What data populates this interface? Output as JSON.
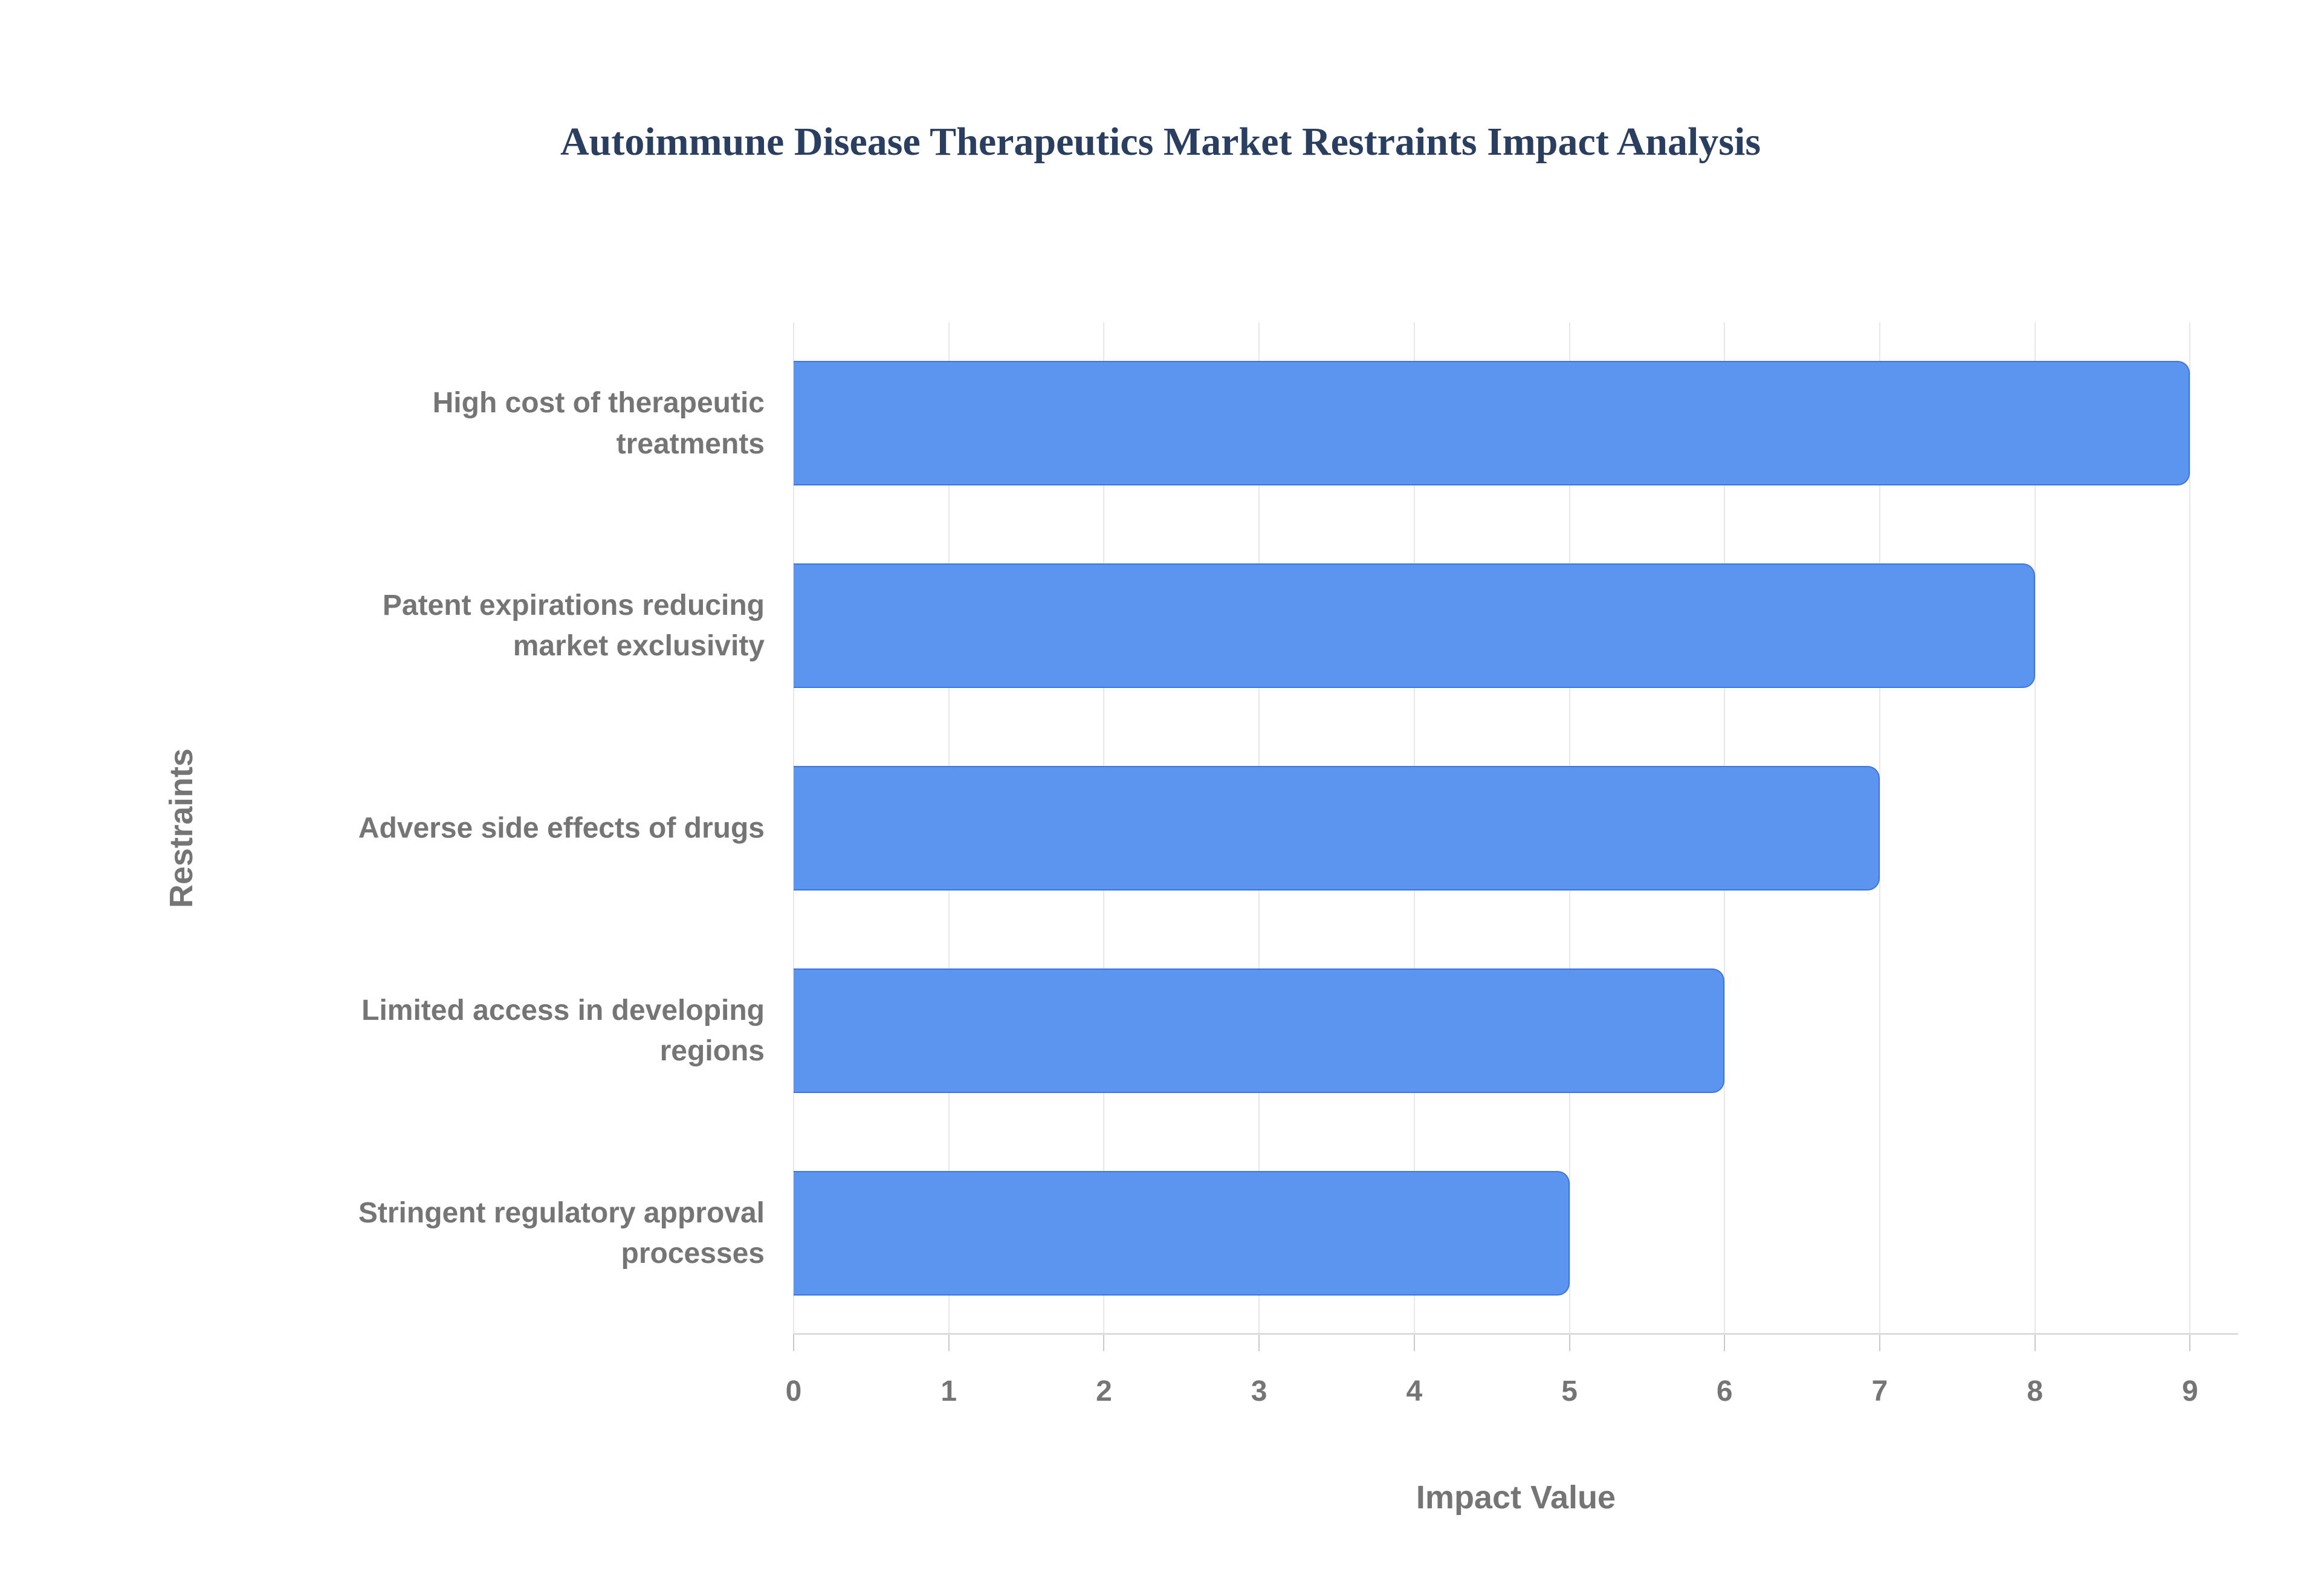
{
  "page": {
    "background": "#ffffff"
  },
  "chart_data": {
    "type": "bar",
    "orientation": "horizontal",
    "title": "Autoimmune Disease Therapeutics Market Restraints Impact Analysis",
    "xlabel": "Impact Value",
    "ylabel": "Restraints",
    "categories": [
      "High cost of therapeutic treatments",
      "Patent expirations reducing market exclusivity",
      "Adverse side effects of drugs",
      "Limited access in developing regions",
      "Stringent regulatory approval processes"
    ],
    "category_lines": [
      [
        "High cost of therapeutic",
        "treatments"
      ],
      [
        "Patent expirations reducing",
        "market exclusivity"
      ],
      [
        "Adverse side effects of drugs"
      ],
      [
        "Limited access in developing",
        "regions"
      ],
      [
        "Stringent regulatory approval",
        "processes"
      ]
    ],
    "values": [
      9,
      8,
      7,
      6,
      5
    ],
    "xticks": [
      0,
      1,
      2,
      3,
      4,
      5,
      6,
      7,
      8,
      9
    ],
    "xlim": [
      0,
      9.31
    ],
    "grid": true,
    "legend": false,
    "colors": {
      "bar_fill": "#5c95ef",
      "bar_border": "#3c75e3",
      "gridline": "#e8e8e8",
      "axis_line": "#dcdcdc",
      "tick": "#c9c9c9",
      "label_text": "#757575",
      "title_text": "#2a3f5f"
    }
  }
}
